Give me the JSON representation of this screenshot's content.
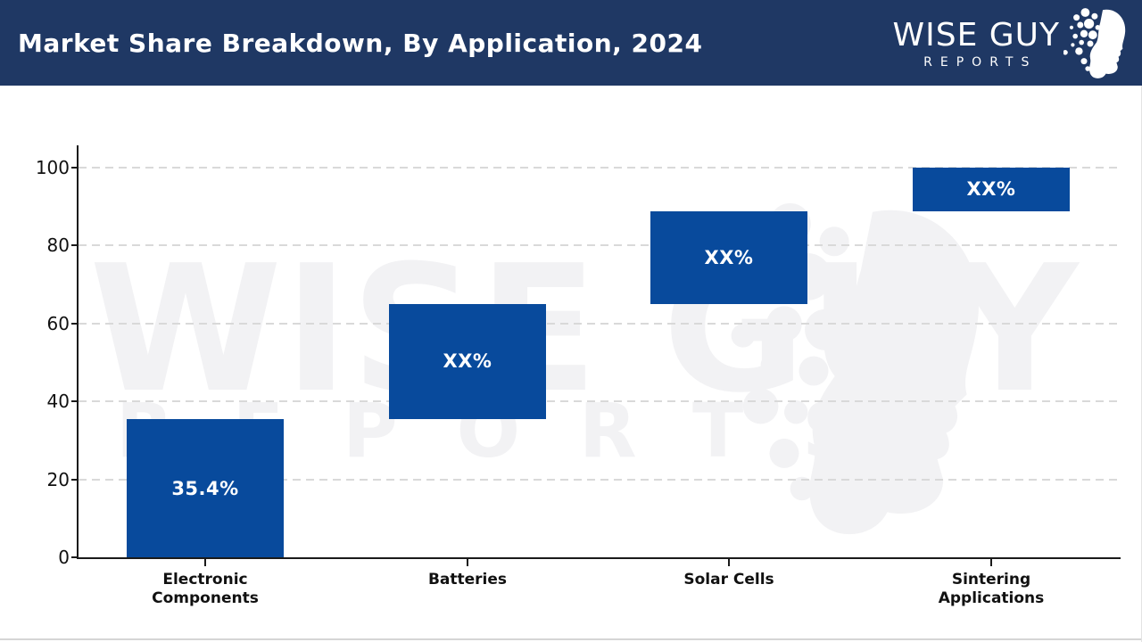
{
  "header": {
    "title": "Market Share Breakdown, By Application, 2024",
    "logo": {
      "line1": "WISE GUY",
      "line2": "REPORTS"
    }
  },
  "watermark": {
    "line1": "WISE GUY",
    "line2": "REPORTS"
  },
  "colors": {
    "header_bg": "#1f3864",
    "bar": "#084a9c",
    "bar_label": "#ffffff",
    "grid": "#d9d9d9",
    "axis": "#1a1a1a",
    "watermark": "#f2f2f4"
  },
  "chart_data": {
    "type": "bar",
    "subtype": "waterfall",
    "title": "Market Share Breakdown, By Application, 2024",
    "categories": [
      "Electronic Components",
      "Batteries",
      "Solar Cells",
      "Sintering Applications"
    ],
    "category_lines": [
      [
        "Electronic",
        "Components"
      ],
      [
        "Batteries"
      ],
      [
        "Solar Cells"
      ],
      [
        "Sintering",
        "Applications"
      ]
    ],
    "segments": [
      {
        "start": 0,
        "end": 35.4,
        "label": "35.4%"
      },
      {
        "start": 35.4,
        "end": 65,
        "label": "XX%"
      },
      {
        "start": 65,
        "end": 88.7,
        "label": "XX%"
      },
      {
        "start": 88.7,
        "end": 100,
        "label": "XX%"
      }
    ],
    "xlabel": "",
    "ylabel": "",
    "ylim": [
      0,
      105
    ],
    "yticks": [
      0,
      20,
      40,
      60,
      80,
      100
    ],
    "grid": "horizontal-dashed",
    "legend": "none"
  }
}
